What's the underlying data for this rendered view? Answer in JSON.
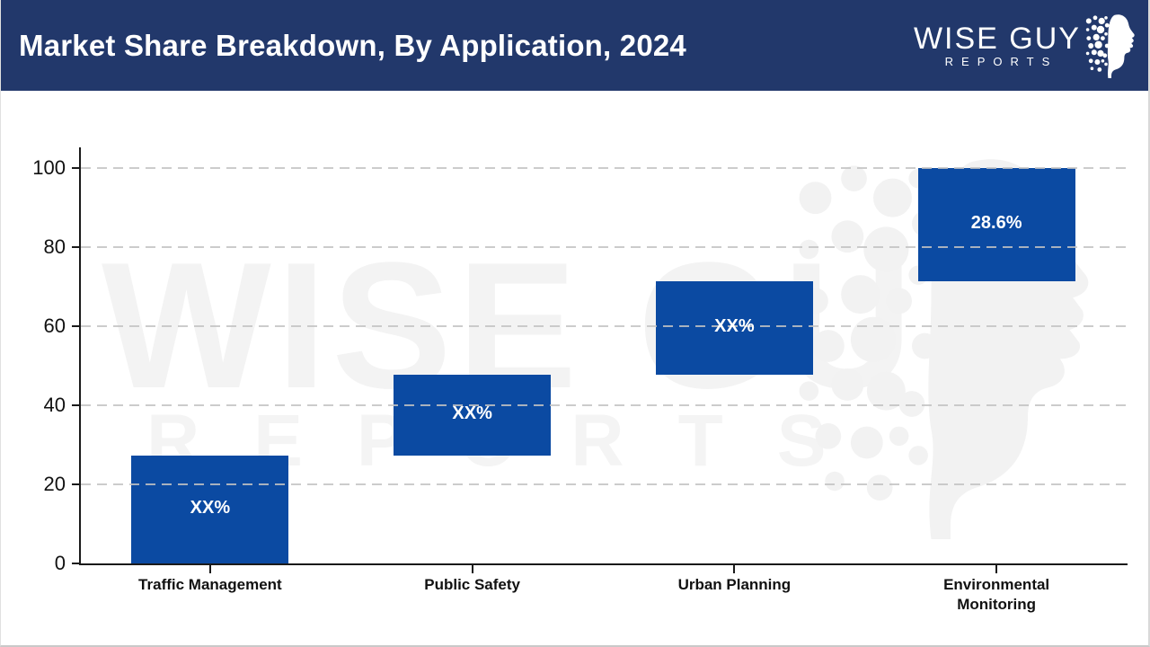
{
  "header": {
    "title": "Market Share Breakdown, By Application, 2024",
    "background": "#22386b",
    "logo": {
      "name": "WISE GUY",
      "sub": "REPORTS"
    }
  },
  "watermark": {
    "line1": "WISE GUY",
    "line2": "REPORTS"
  },
  "chart_data": {
    "type": "bar",
    "subtype": "waterfall",
    "title": "Market Share Breakdown, By Application, 2024",
    "categories": [
      "Traffic Management",
      "Public Safety",
      "Urban Planning",
      "Environmental Monitoring"
    ],
    "segments": [
      {
        "category": "Traffic Management",
        "start": 0,
        "end": 27.3,
        "label": "XX%"
      },
      {
        "category": "Public Safety",
        "start": 27.3,
        "end": 47.7,
        "label": "XX%"
      },
      {
        "category": "Urban Planning",
        "start": 47.7,
        "end": 71.4,
        "label": "XX%"
      },
      {
        "category": "Environmental Monitoring",
        "start": 71.4,
        "end": 100,
        "label": "28.6%"
      }
    ],
    "ylim": [
      0,
      100
    ],
    "yticks": [
      0,
      20,
      40,
      60,
      80,
      100
    ],
    "grid": {
      "horizontal": true,
      "style": "dashed",
      "color": "#d8d8d8"
    },
    "legend": "none",
    "bar_color": "#0b4aa2",
    "bar_label_color": "#ffffff",
    "axis_color": "#1a1a1a",
    "tick_label_color": "#111111"
  }
}
